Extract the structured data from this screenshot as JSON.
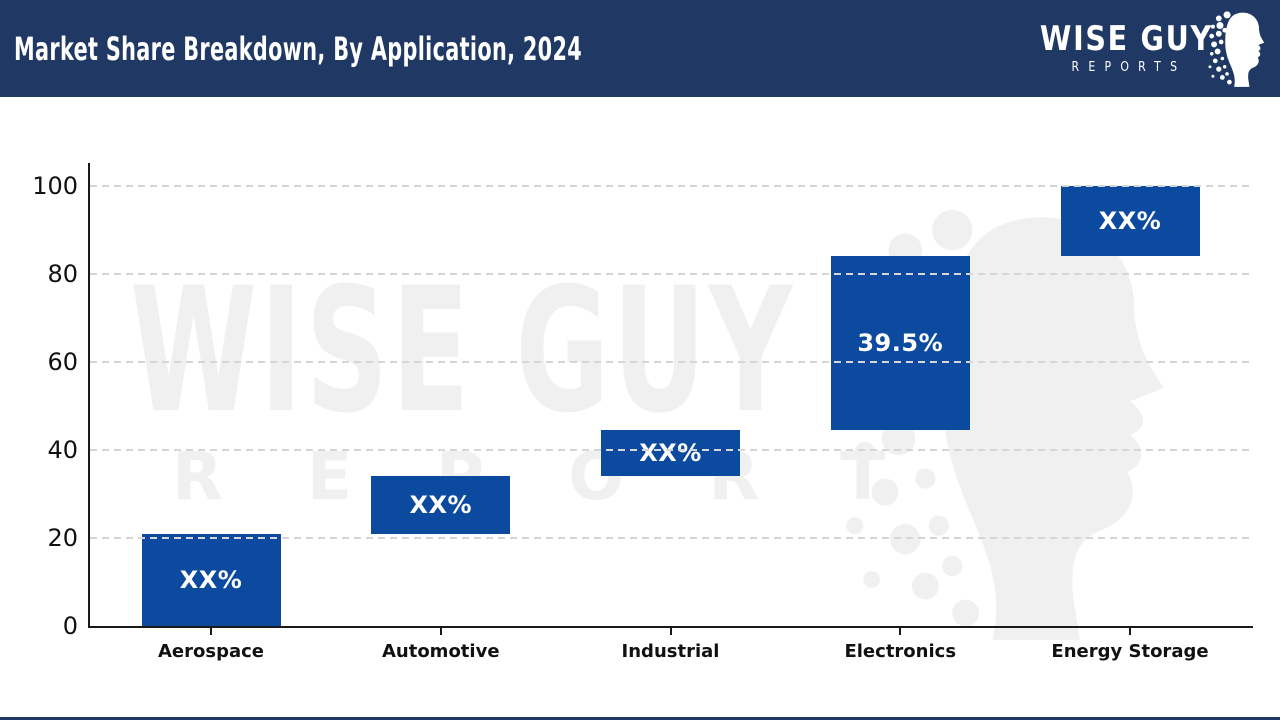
{
  "header": {
    "title": "Market Share Breakdown, By Application, 2024",
    "logo": {
      "line1": "WISE GUY",
      "line2": "REPORTS"
    }
  },
  "watermark": {
    "line1": "WISE GUY",
    "line2": "REPORTS"
  },
  "chart_data": {
    "type": "bar",
    "subtype": "waterfall",
    "title": "Market Share Breakdown, By Application, 2024",
    "xlabel": "",
    "ylabel": "",
    "categories": [
      "Aerospace",
      "Automotive",
      "Industrial",
      "Electronics",
      "Energy Storage"
    ],
    "segments": [
      {
        "category": "Aerospace",
        "start": 0,
        "end": 21,
        "value": 21,
        "label": "XX%"
      },
      {
        "category": "Automotive",
        "start": 21,
        "end": 34,
        "value": 13,
        "label": "XX%"
      },
      {
        "category": "Industrial",
        "start": 34,
        "end": 44.5,
        "value": 10.5,
        "label": "XX%"
      },
      {
        "category": "Electronics",
        "start": 44.5,
        "end": 84,
        "value": 39.5,
        "label": "39.5%"
      },
      {
        "category": "Energy Storage",
        "start": 84,
        "end": 100,
        "value": 16,
        "label": "XX%"
      }
    ],
    "yticks": [
      0,
      20,
      40,
      60,
      80,
      100
    ],
    "ylim": [
      0,
      105
    ],
    "grid": "horizontal-dashed-over-bars",
    "legend": "none"
  },
  "colors": {
    "header_bg": "#1f3864",
    "bar": "#0b4a9e",
    "grid": "#d6d6d6",
    "axis": "#1a1a1a",
    "watermark": "#f0f0f0",
    "title_text": "#ffffff",
    "bar_label_text": "#ffffff",
    "tick_label_text": "#111111"
  }
}
